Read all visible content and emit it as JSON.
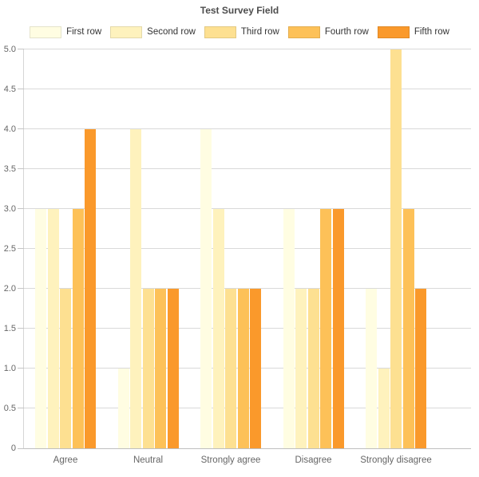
{
  "title": "Test Survey Field",
  "chart_data": {
    "type": "bar",
    "title": "Test Survey Field",
    "categories": [
      "Agree",
      "Neutral",
      "Strongly agree",
      "Disagree",
      "Strongly disagree"
    ],
    "series": [
      {
        "name": "First row",
        "color": "#FFFDE2",
        "values": [
          3,
          1,
          4,
          3,
          2
        ]
      },
      {
        "name": "Second row",
        "color": "#FEF2BD",
        "values": [
          3,
          4,
          3,
          2,
          1
        ]
      },
      {
        "name": "Third row",
        "color": "#FDE091",
        "values": [
          2,
          2,
          2,
          2,
          5
        ]
      },
      {
        "name": "Fourth row",
        "color": "#FDC158",
        "values": [
          3,
          2,
          2,
          3,
          3
        ]
      },
      {
        "name": "Fifth row",
        "color": "#FA992B",
        "values": [
          4,
          2,
          2,
          3,
          2
        ]
      }
    ],
    "xlabel": "",
    "ylabel": "",
    "ylim": [
      0,
      5
    ],
    "ytick_step": 0.5,
    "ytick_labels": [
      "0",
      "0.5",
      "1.0",
      "1.5",
      "2.0",
      "2.5",
      "3.0",
      "3.5",
      "4.0",
      "4.5",
      "5.0"
    ],
    "grid": true,
    "legend_position": "top",
    "gridline_color": "#d9d9d9",
    "axis_text_color": "#666666",
    "title_color": "#4d4d4d"
  }
}
